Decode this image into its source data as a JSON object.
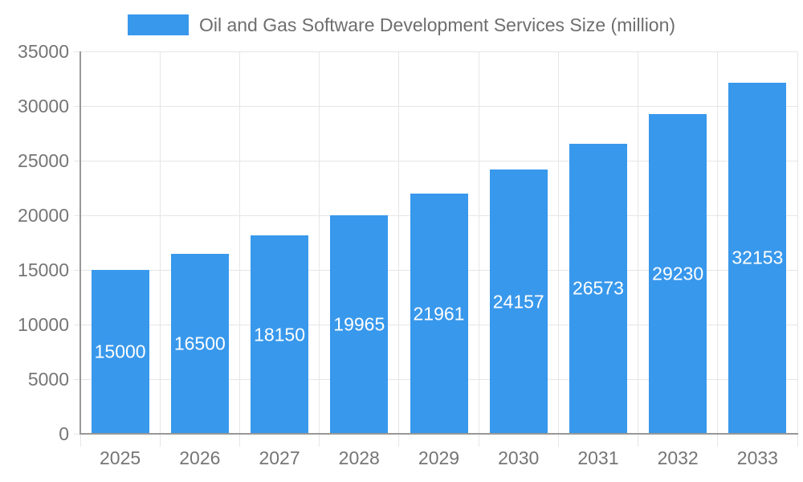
{
  "legend": {
    "label": "Oil and Gas Software Development Services Size (million)"
  },
  "chart_data": {
    "type": "bar",
    "title": "Oil and Gas Software Development Services Size (million)",
    "categories": [
      "2025",
      "2026",
      "2027",
      "2028",
      "2029",
      "2030",
      "2031",
      "2032",
      "2033"
    ],
    "series": [
      {
        "name": "Oil and Gas Software Development Services Size (million)",
        "values": [
          15000,
          16500,
          18150,
          19965,
          21961,
          24157,
          26573,
          29230,
          32153
        ]
      }
    ],
    "value_labels": [
      "15000",
      "16500",
      "18150",
      "19965",
      "21961",
      "24157",
      "26573",
      "29230",
      "32153"
    ],
    "xlabel": "",
    "ylabel": "",
    "ylim": [
      0,
      35000
    ],
    "ytick_step": 5000,
    "yticks": [
      0,
      5000,
      10000,
      15000,
      20000,
      25000,
      30000,
      35000
    ],
    "grid": true,
    "legend_position": "top",
    "colors": {
      "bar": "#3898ec",
      "value_label": "#ffffff",
      "tick_text": "#757575",
      "legend_text": "#6e6e6e",
      "grid_line": "#e6e6e6",
      "axis_line": "#989898"
    }
  }
}
